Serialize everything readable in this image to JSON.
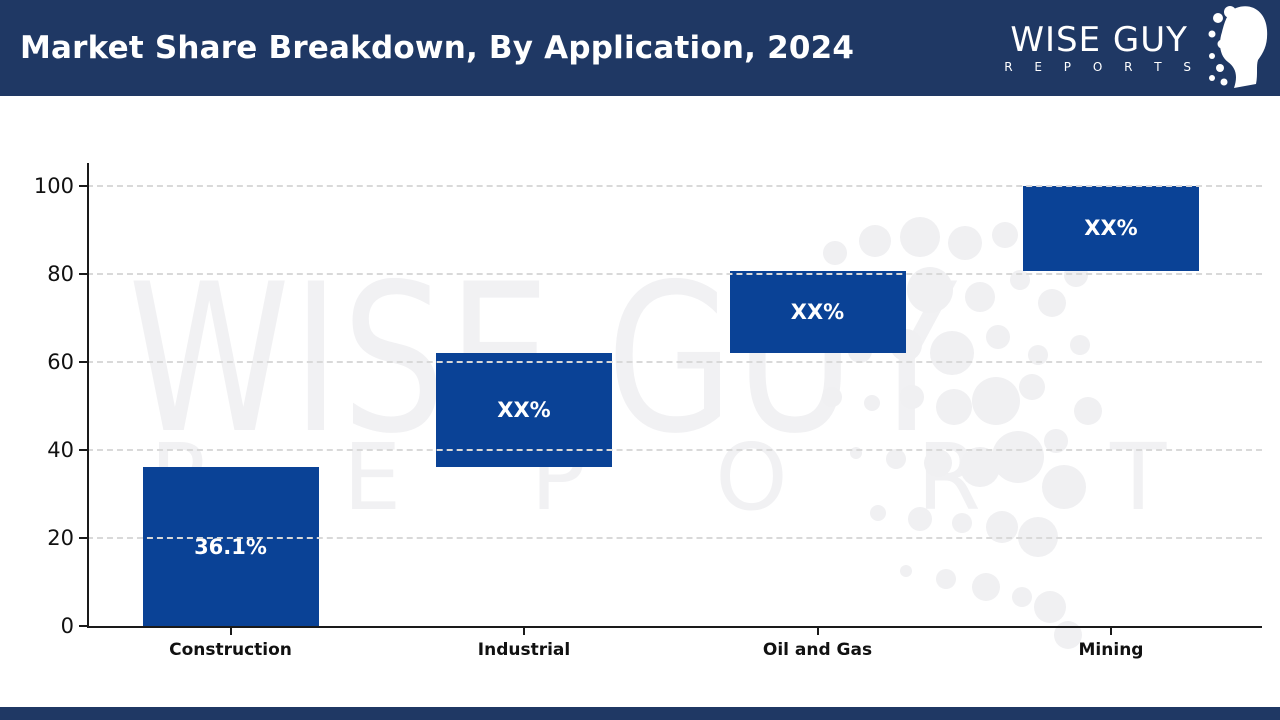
{
  "header": {
    "title": "Market Share Breakdown, By Application, 2024",
    "logo": {
      "line1": "WISE GUY",
      "line2": "R E P O R T S"
    }
  },
  "watermark": {
    "line1": "WISE GUY",
    "line2": "R E P O R T S"
  },
  "chart_data": {
    "type": "bar",
    "subtype": "waterfall",
    "title": "Market Share Breakdown, By Application, 2024",
    "categories": [
      "Construction",
      "Industrial",
      "Oil and Gas",
      "Mining"
    ],
    "segments": [
      {
        "category": "Construction",
        "start": 0,
        "end": 36.1,
        "label": "36.1%"
      },
      {
        "category": "Industrial",
        "start": 36.1,
        "end": 62.0,
        "label": "XX%"
      },
      {
        "category": "Oil and Gas",
        "start": 62.0,
        "end": 80.7,
        "label": "XX%"
      },
      {
        "category": "Mining",
        "start": 80.7,
        "end": 100,
        "label": "XX%"
      }
    ],
    "yticks": [
      0,
      20,
      40,
      60,
      80,
      100
    ],
    "ylim": [
      0,
      105
    ],
    "xlabel": "",
    "ylabel": "",
    "grid": {
      "horizontal": true,
      "style": "dashed",
      "color": "#d9d9d9"
    },
    "legend": null,
    "bar_color": "#0a4296",
    "bar_label_color": "#ffffff",
    "axis_color": "#1a1a1a"
  },
  "colors": {
    "header_bg": "#1f3864",
    "footer_bg": "#1f3864",
    "page_bg": "#ffffff",
    "watermark": "#f1f1f3"
  }
}
